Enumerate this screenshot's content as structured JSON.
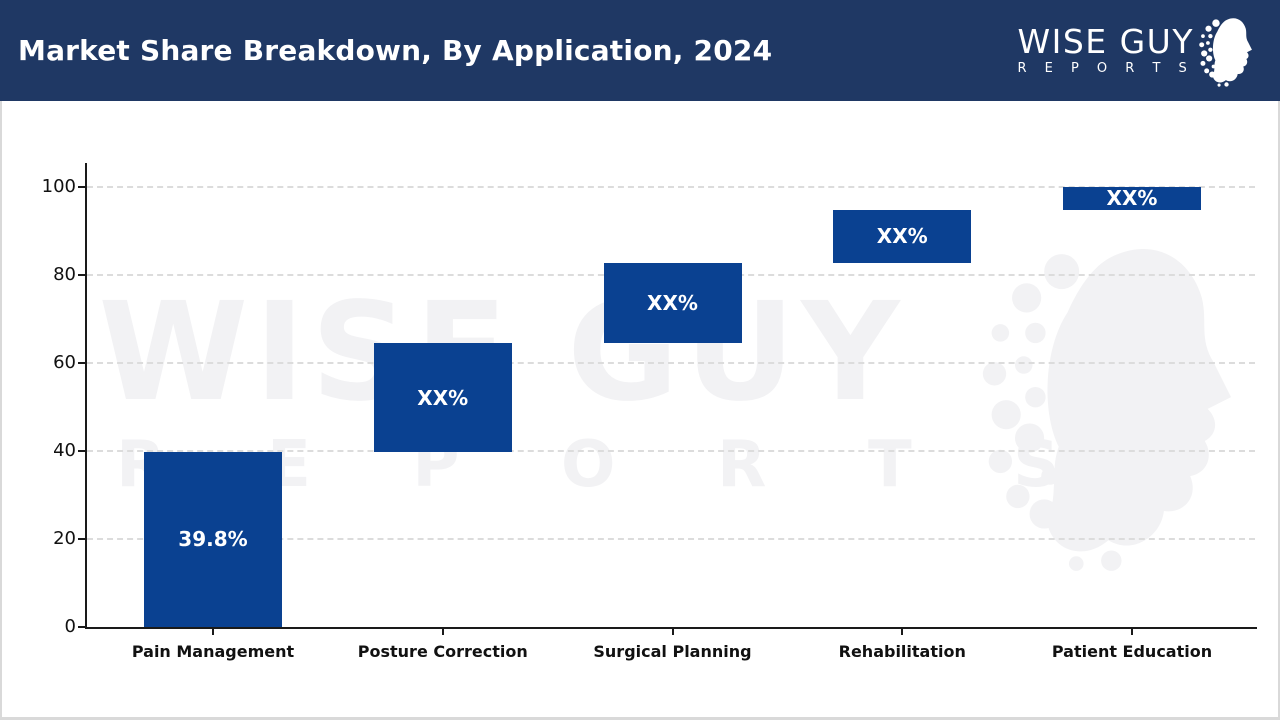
{
  "header": {
    "title": "Market Share Breakdown, By Application, 2024",
    "logo": {
      "name": "WISE GUY",
      "tagline": "R E P O R T S"
    }
  },
  "watermark": {
    "line1": "WISE GUY",
    "line2": "R E P O R T S"
  },
  "colors": {
    "header_bg": "#1f3864",
    "bar": "#0a4191",
    "grid": "#dcdcdc",
    "axis": "#1a1a1a",
    "watermark": "#f2f2f4",
    "page_border": "#d9d9d9",
    "value_label": "#ffffff"
  },
  "chart_data": {
    "type": "waterfall",
    "title": "Market Share Breakdown, By Application, 2024",
    "categories": [
      "Pain Management",
      "Posture Correction",
      "Surgical Planning",
      "Rehabilitation",
      "Patient Education"
    ],
    "segments": [
      {
        "category": "Pain Management",
        "value": 39.8,
        "start": 0,
        "end": 39.8,
        "label": "39.8%"
      },
      {
        "category": "Posture Correction",
        "value": 24.7,
        "start": 39.8,
        "end": 64.5,
        "label": "XX%"
      },
      {
        "category": "Surgical Planning",
        "value": 18.3,
        "start": 64.5,
        "end": 82.8,
        "label": "XX%"
      },
      {
        "category": "Rehabilitation",
        "value": 12.0,
        "start": 82.8,
        "end": 94.8,
        "label": "XX%"
      },
      {
        "category": "Patient Education",
        "value": 5.2,
        "start": 94.8,
        "end": 100.0,
        "label": "XX%"
      }
    ],
    "y_ticks": [
      0,
      20,
      40,
      60,
      80,
      100
    ],
    "ylim": [
      0,
      105.5
    ],
    "xlabel": "",
    "ylabel": "",
    "grid": "horizontal-dashed",
    "legend": "none",
    "bar_color": "#0a4191"
  }
}
